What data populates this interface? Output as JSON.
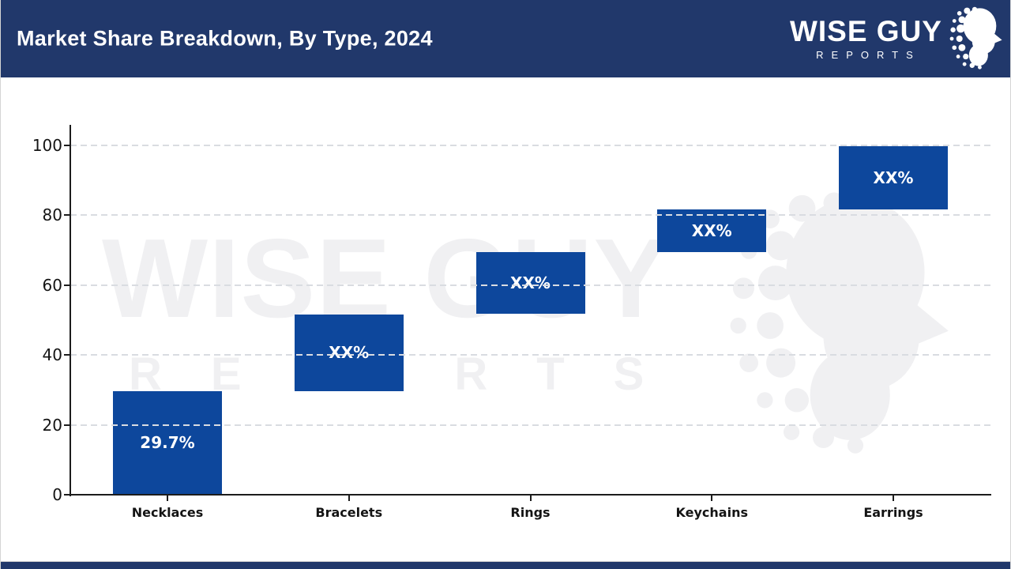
{
  "header": {
    "title": "Market Share Breakdown, By Type, 2024",
    "brand": {
      "line1": "WISE GUY",
      "line2": "REPORTS"
    }
  },
  "watermark": {
    "line1": "WISE GUY",
    "line2": "REPORTS"
  },
  "colors": {
    "header_bg": "#21386b",
    "bar": "#0d479c",
    "grid": "#d9dce1",
    "axis": "#1c1c1c",
    "tick_text": "#141414",
    "bar_label": "#ffffff",
    "watermark": "#f0f0f2",
    "page_bg": "#ffffff"
  },
  "chart_data": {
    "type": "bar",
    "subtype": "waterfall-floating-bars",
    "title": "Market Share Breakdown, By Type, 2024",
    "categories": [
      "Necklaces",
      "Bracelets",
      "Rings",
      "Keychains",
      "Earrings"
    ],
    "segments": [
      {
        "category": "Necklaces",
        "start": 0,
        "end": 29.7,
        "label": "29.7%"
      },
      {
        "category": "Bracelets",
        "start": 29.7,
        "end": 51.6,
        "label": "XX%"
      },
      {
        "category": "Rings",
        "start": 51.9,
        "end": 69.4,
        "label": "XX%"
      },
      {
        "category": "Keychains",
        "start": 69.4,
        "end": 81.7,
        "label": "XX%"
      },
      {
        "category": "Earrings",
        "start": 81.6,
        "end": 99.8,
        "label": "XX%"
      }
    ],
    "yticks": [
      0,
      20,
      40,
      60,
      80,
      100
    ],
    "ylim": [
      0,
      105
    ],
    "xlabel": "",
    "ylabel": "",
    "grid": "horizontal-dashed",
    "legend": "none"
  }
}
